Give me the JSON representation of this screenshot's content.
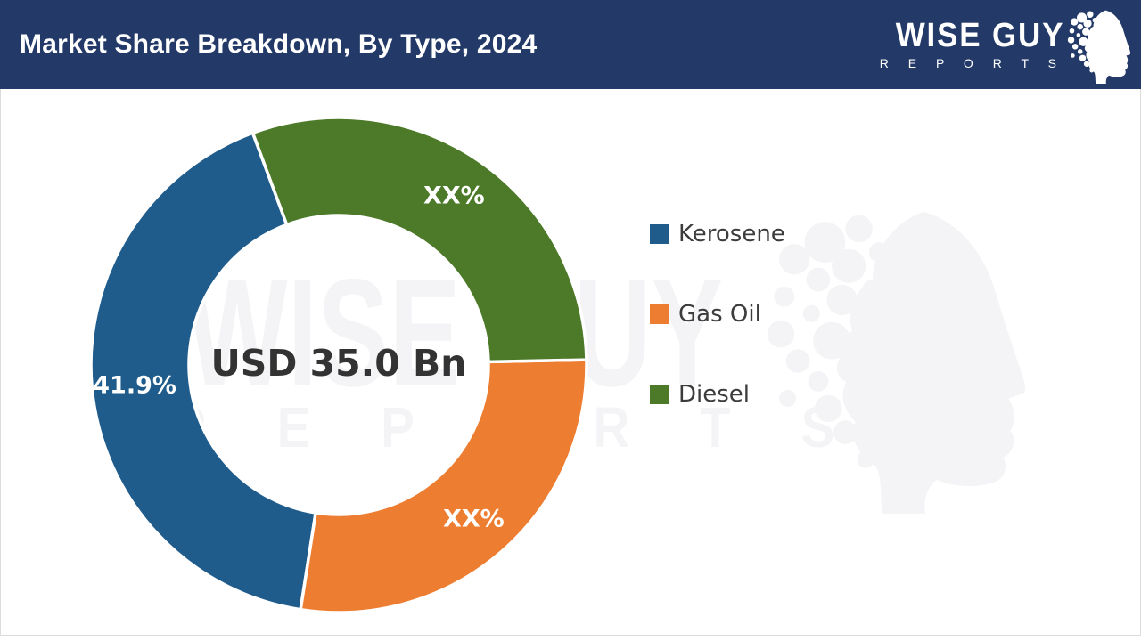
{
  "header": {
    "title": "Market Share Breakdown, By Type, 2024",
    "background_color": "#233A69",
    "logo": {
      "line1": "WISE GUY",
      "line2": "R E P O R T S"
    }
  },
  "watermark": {
    "line1": "WISE GUY",
    "line2": "R E P O R T S"
  },
  "chart_data": {
    "type": "donut",
    "title": "Market Share Breakdown, By Type, 2024",
    "center_label": "USD 35.0 Bn",
    "start_angle_deg": 110.3,
    "direction": "ccw",
    "values_estimated_from_arc_angles": true,
    "segments": [
      {
        "label": "Kerosene",
        "value": 41.9,
        "display_label": "41.9%",
        "color": "#1F5C8C"
      },
      {
        "label": "Gas Oil",
        "value": 27.8,
        "display_label": "XX%",
        "color": "#ED7D31"
      },
      {
        "label": "Diesel",
        "value": 30.3,
        "display_label": "XX%",
        "color": "#4C7A29"
      }
    ],
    "legend_position": "right",
    "slice_gap_color": "#FFFFFF"
  },
  "colors": {
    "header_bg": "#233A69",
    "content_border": "#DCDCDC",
    "watermark": "#F4F4F6",
    "center_text": "#333333",
    "legend_text": "#3C3C3C",
    "slice_label_text": "#FFFFFF"
  }
}
